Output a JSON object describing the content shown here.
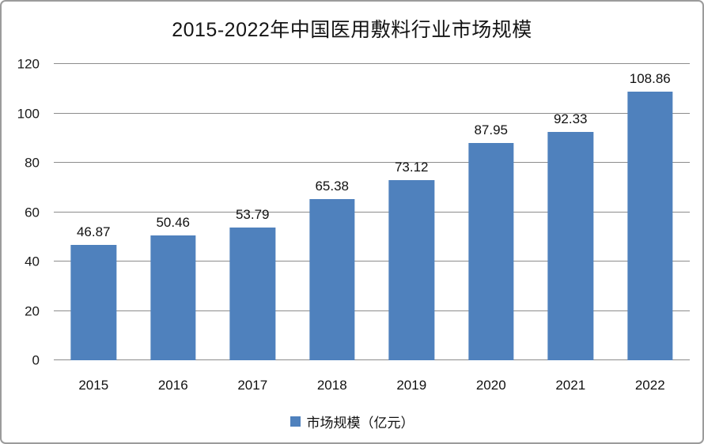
{
  "window": {
    "background": "#ffffff",
    "border_color": "#9b9b9b"
  },
  "chart_data": {
    "type": "bar",
    "title": "2015-2022年中国医用敷料行业市场规模",
    "categories": [
      "2015",
      "2016",
      "2017",
      "2018",
      "2019",
      "2020",
      "2021",
      "2022"
    ],
    "series": [
      {
        "name": "市场规模（亿元）",
        "color": "#4F81BD",
        "values": [
          46.87,
          50.46,
          53.79,
          65.38,
          73.12,
          87.95,
          92.33,
          108.86
        ]
      }
    ],
    "value_labels": [
      "46.87",
      "50.46",
      "53.79",
      "65.38",
      "73.12",
      "87.95",
      "92.33",
      "108.86"
    ],
    "xlabel": "",
    "ylabel": "",
    "ylim": [
      0,
      120
    ],
    "yticks": [
      0,
      20,
      40,
      60,
      80,
      100,
      120
    ],
    "grid": true,
    "gridline_color": "#8c8c8c",
    "legend_position": "bottom",
    "legend": [
      "市场规模（亿元）"
    ]
  }
}
